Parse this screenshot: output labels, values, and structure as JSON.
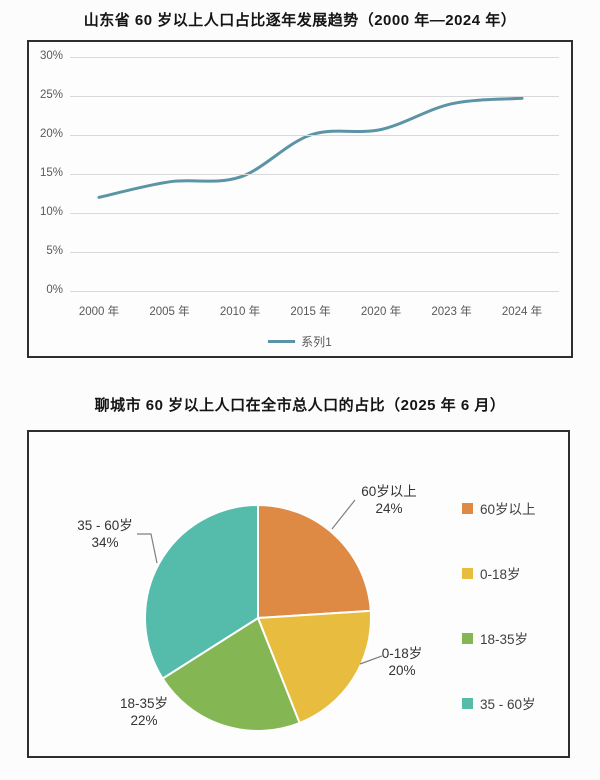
{
  "chart_data": [
    {
      "type": "line",
      "title": "山东省 60 岁以上人口占比逐年发展趋势（2000 年—2024 年）",
      "categories": [
        "2000 年",
        "2005 年",
        "2010 年",
        "2015 年",
        "2020 年",
        "2023 年",
        "2024 年"
      ],
      "series": [
        {
          "name": "系列1",
          "values": [
            12,
            14,
            14.6,
            20,
            20.7,
            24,
            24.7
          ]
        }
      ],
      "unit": "%",
      "ylim": [
        0,
        30
      ],
      "y_tick_step": 5,
      "y_tick_labels": [
        "0%",
        "5%",
        "10%",
        "15%",
        "20%",
        "25%",
        "30%"
      ],
      "grid": true,
      "smooth": true,
      "legend_position": "bottom",
      "line_color": "#5B94A6"
    },
    {
      "type": "pie",
      "title": "聊城市 60 岁以上人口在全市总人口的占比（2025 年 6 月）",
      "slices": [
        {
          "label": "60岁以上",
          "value": 24,
          "pct_label": "24%",
          "color": "#DF8A44"
        },
        {
          "label": "0-18岁",
          "value": 20,
          "pct_label": "20%",
          "color": "#E8BD3F"
        },
        {
          "label": "18-35岁",
          "value": 22,
          "pct_label": "22%",
          "color": "#84B754"
        },
        {
          "label": "35 - 60岁",
          "value": 34,
          "pct_label": "34%",
          "color": "#55BCAC"
        }
      ],
      "start_angle_deg": 0,
      "direction": "clockwise",
      "legend_position": "right"
    }
  ]
}
